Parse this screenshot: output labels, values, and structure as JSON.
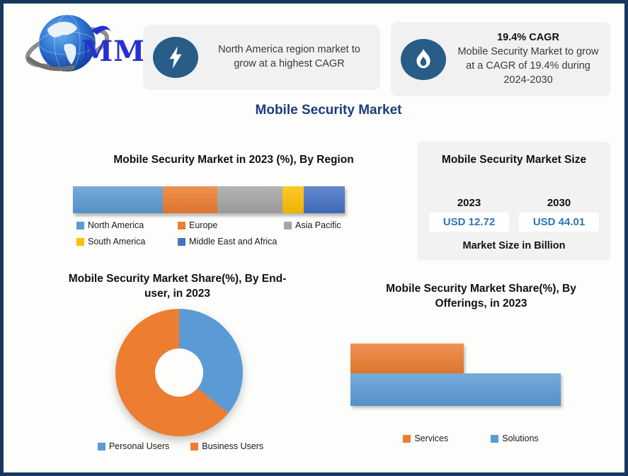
{
  "frame": {
    "border_color": "#17375E",
    "background": "#FDFDFB"
  },
  "logo": {
    "text": "MMR",
    "text_color": "#2730cf",
    "globe_icon": "globe-icon",
    "swoosh_color": "#8d8d8d"
  },
  "header_title": "Mobile Security Market",
  "callouts": [
    {
      "icon": "lightning-icon",
      "icon_bg": "#275D87",
      "text": "North America region market to grow at a highest CAGR"
    },
    {
      "icon": "flame-icon",
      "icon_bg": "#275D87",
      "title": "19.4% CAGR",
      "text": "Mobile Security Market to grow at a CAGR of 19.4% during 2024-2030"
    }
  ],
  "market_size_panel": {
    "title": "Mobile Security Market Size",
    "columns": [
      {
        "year": "2023",
        "value": "USD 12.72"
      },
      {
        "year": "2030",
        "value": "USD 44.01"
      }
    ],
    "footnote": "Market Size in Billion",
    "value_color": "#2E75B6",
    "panel_bg": "#f2f2f2"
  },
  "chart_data": [
    {
      "id": "region",
      "type": "bar",
      "subtype": "stacked-horizontal-single-bar",
      "title": "Mobile Security Market in 2023 (%), By Region",
      "categories": [
        "North America",
        "Europe",
        "Asia Pacific",
        "South America",
        "Middle East and Africa"
      ],
      "values": [
        33,
        20,
        24,
        8,
        15
      ],
      "colors": [
        "#5B9BD5",
        "#ED7D31",
        "#A5A5A5",
        "#FFC000",
        "#4472C4"
      ],
      "unit": "%",
      "legend_position": "bottom",
      "axes_shown": false
    },
    {
      "id": "end-user",
      "type": "pie",
      "subtype": "donut",
      "title": "Mobile Security Market Share(%), By End-user, in 2023",
      "categories": [
        "Personal Users",
        "Business Users"
      ],
      "values": [
        36,
        64
      ],
      "colors": [
        "#5B9BD5",
        "#ED7D31"
      ],
      "start_angle_deg": 0,
      "unit": "%",
      "legend_position": "bottom"
    },
    {
      "id": "offerings",
      "type": "bar",
      "subtype": "horizontal",
      "title": "Mobile Security Market Share(%), By Offerings, in 2023",
      "categories": [
        "Services",
        "Solutions"
      ],
      "values": [
        35,
        65
      ],
      "colors": [
        "#ED7D31",
        "#5B9BD5"
      ],
      "unit": "%",
      "legend_position": "bottom",
      "axes_shown": false
    }
  ]
}
